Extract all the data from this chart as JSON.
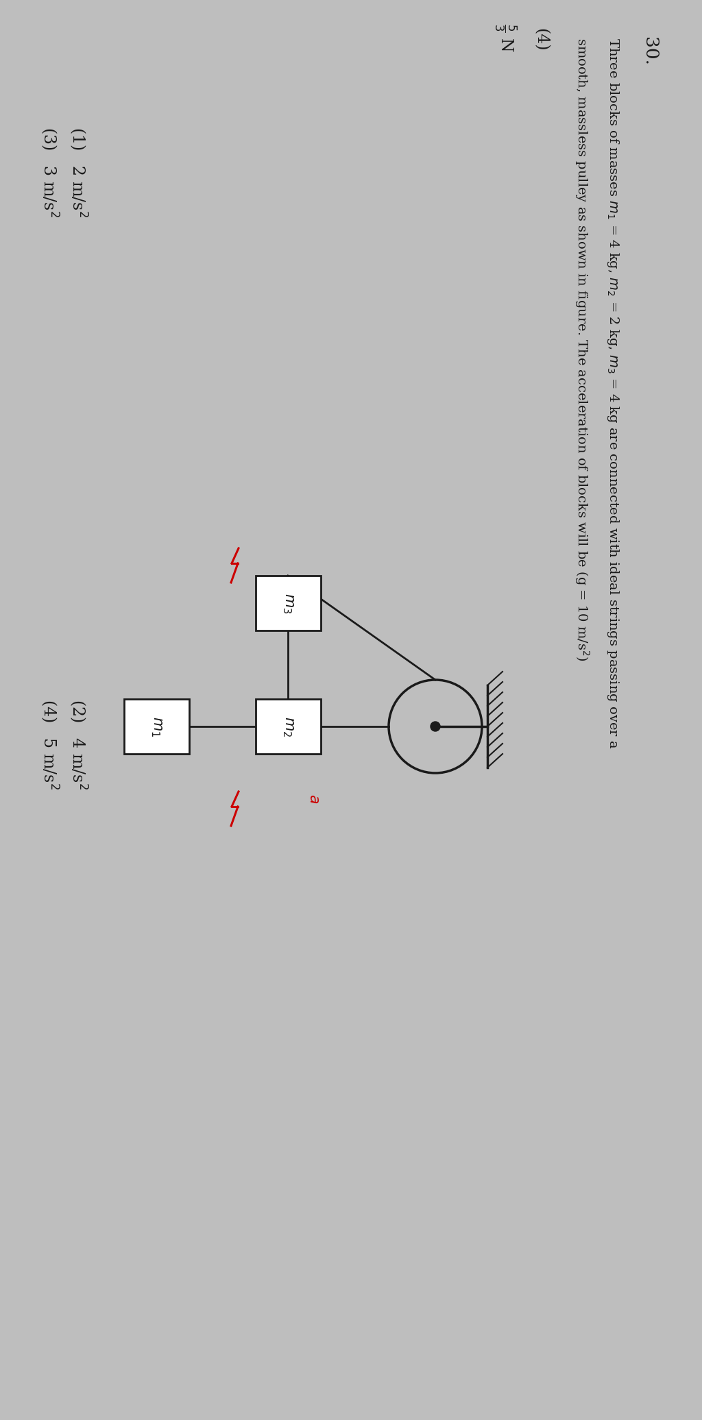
{
  "bg_color": "#bebebe",
  "text_color": "#1a1a1a",
  "red_color": "#cc0000",
  "block_color": "#ffffff",
  "block_border": "#1a1a1a",
  "question_number": "30.",
  "line1": "Three blocks of masses $m_1$ = 4 kg, $m_2$ = 2 kg, $m_3$ = 4 kg are connected with ideal strings passing over a",
  "line2": "smooth, massless pulley as shown in figure. The acceleration of blocks will be (g = 10 m/s$^2$)",
  "ans4_top": "(4)   $\\frac{5}{3}$ N",
  "ans1": "(1)   2 m/s$^2$",
  "ans3": "(3)   3 m/s$^2$",
  "ans2": "(2)   4 m/s$^2$",
  "ans4": "(4)   5 m/s$^2$",
  "m1_label": "$m_1$",
  "m2_label": "$m_2$",
  "m3_label": "$m_3$"
}
